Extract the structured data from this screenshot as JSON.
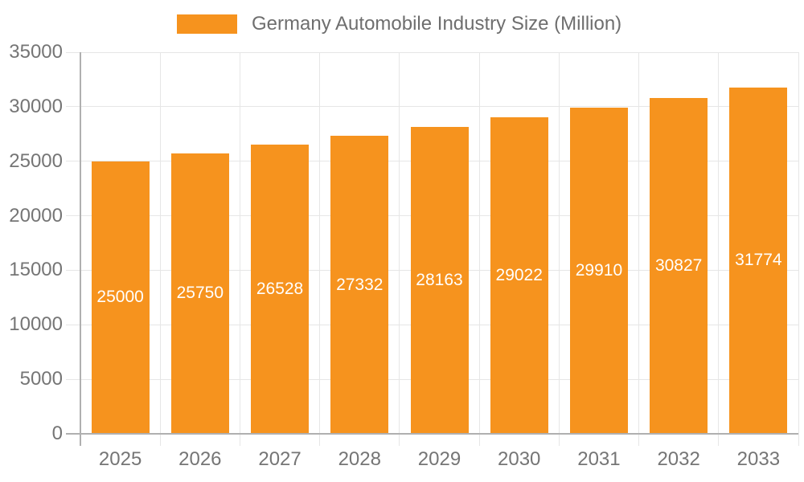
{
  "chart_data": {
    "type": "bar",
    "title": "Germany Automobile Industry Size (Million)",
    "legend_position": "top-center",
    "categories": [
      "2025",
      "2026",
      "2027",
      "2028",
      "2029",
      "2030",
      "2031",
      "2032",
      "2033"
    ],
    "series": [
      {
        "name": "Germany Automobile Industry Size (Million)",
        "values": [
          25000,
          25750,
          26528,
          27332,
          28163,
          29022,
          29910,
          30827,
          31774
        ]
      }
    ],
    "ylim": [
      0,
      35000
    ],
    "ytick_step": 5000,
    "yticks": [
      0,
      5000,
      10000,
      15000,
      20000,
      25000,
      30000,
      35000
    ],
    "grid": true,
    "data_labels": {
      "visible": true,
      "position": "inside-middle"
    }
  },
  "style": {
    "bar_color": "#F6931E",
    "axis_line_color": "#b0b0b0",
    "gridline_color": "#e6e6e6",
    "axis_label_color": "#757575",
    "legend_text_color": "#6e6e6e",
    "data_label_color": "#ffffff",
    "background_color": "#ffffff"
  }
}
